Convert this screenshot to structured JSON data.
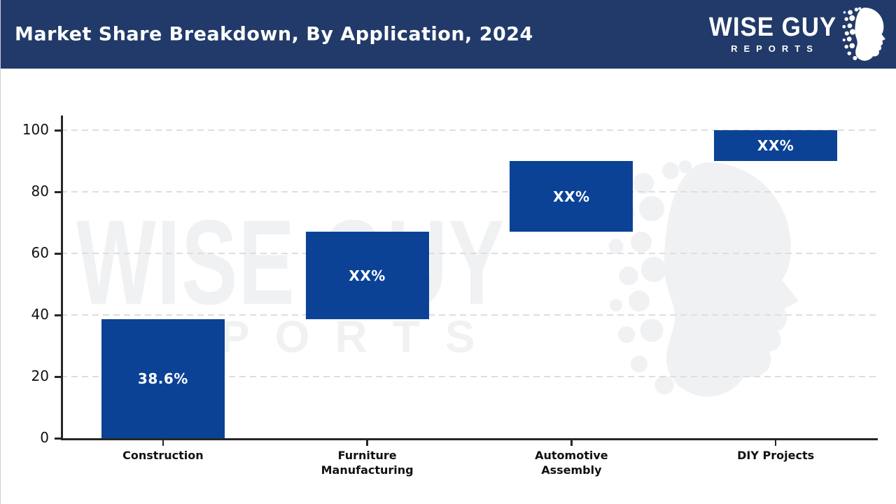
{
  "header": {
    "title": "Market Share Breakdown, By Application, 2024",
    "logo": {
      "line1": "WISE GUY",
      "line2": "REPORTS",
      "head_icon": "dotted-head-profile"
    }
  },
  "watermark": {
    "line1": "WISE GUY",
    "line2": "REPORTS",
    "head_icon": "dotted-head-profile"
  },
  "chart_data": {
    "type": "bar",
    "subtype": "waterfall-floating-bars",
    "title": "Market Share Breakdown, By Application, 2024",
    "categories": [
      "Construction",
      "Furniture\nManufacturing",
      "Automotive\nAssembly",
      "DIY Projects"
    ],
    "series": [
      {
        "name": "Market Share",
        "segments": [
          {
            "category": "Construction",
            "from": 0,
            "to": 38.6,
            "label": "38.6%"
          },
          {
            "category": "Furniture Manufacturing",
            "from": 38.6,
            "to": 67,
            "label": "XX%"
          },
          {
            "category": "Automotive Assembly",
            "from": 67,
            "to": 90,
            "label": "XX%"
          },
          {
            "category": "DIY Projects",
            "from": 90,
            "to": 100,
            "label": "XX%"
          }
        ]
      }
    ],
    "xlabel": "",
    "ylabel": "",
    "ylim": [
      0,
      100
    ],
    "yticks": [
      0,
      20,
      40,
      60,
      80,
      100
    ],
    "grid": "horizontal-dashed",
    "legend_position": "none",
    "bar_color": "#0b4296",
    "bar_label_color": "#ffffff",
    "axis_color": "#262626",
    "gridline_color": "#dedede"
  },
  "colors": {
    "header_bg": "#213a69",
    "header_text": "#ffffff",
    "watermark": "#f0f1f3",
    "page_border": "#cfcfcf"
  }
}
